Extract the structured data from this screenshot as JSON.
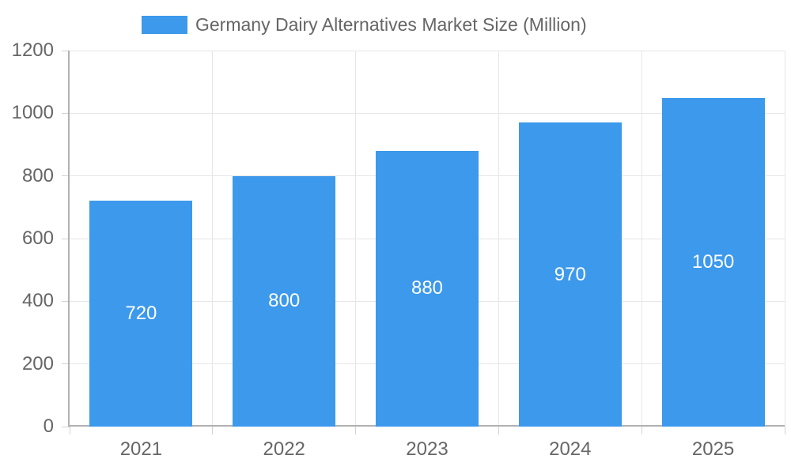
{
  "legend": {
    "label": "Germany Dairy Alternatives Market Size (Million)"
  },
  "colors": {
    "bar": "#3c99ec",
    "text": "#666666",
    "grid": "#e6e6e6",
    "tick": "#d2d2d2",
    "axis": "#b1b1b1",
    "bar_label": "#ffffff",
    "background": "#ffffff"
  },
  "chart_data": {
    "type": "bar",
    "title": "Germany Dairy Alternatives Market Size (Million)",
    "categories": [
      "2021",
      "2022",
      "2023",
      "2024",
      "2025"
    ],
    "values": [
      720,
      800,
      880,
      970,
      1050
    ],
    "series": [
      {
        "name": "Germany Dairy Alternatives Market Size (Million)",
        "values": [
          720,
          800,
          880,
          970,
          1050
        ]
      }
    ],
    "xlabel": "",
    "ylabel": "",
    "ylim": [
      0,
      1200
    ],
    "ytick_step": 200,
    "yticks": [
      0,
      200,
      400,
      600,
      800,
      1000,
      1200
    ],
    "grid": true,
    "legend_position": "top",
    "value_labels": "inside-bars-white-centered"
  }
}
